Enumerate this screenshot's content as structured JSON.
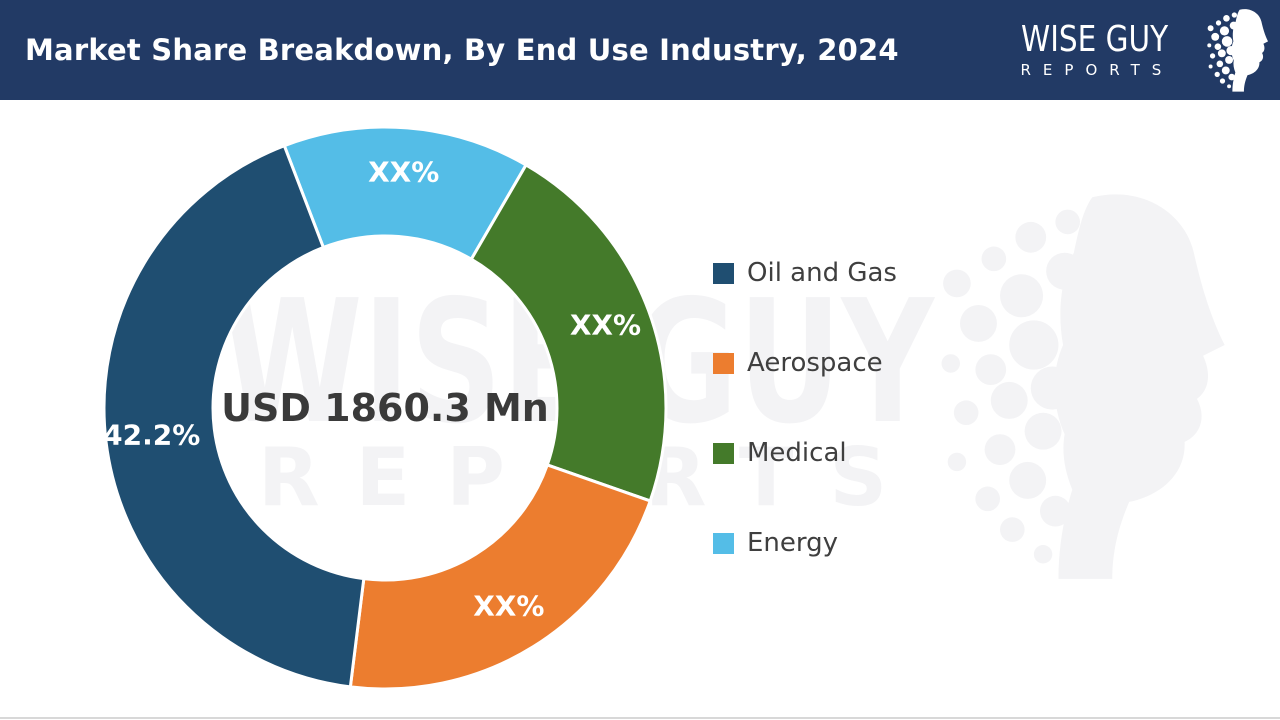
{
  "header": {
    "title": "Market Share Breakdown, By End Use Industry, 2024",
    "logo_line1": "WISE GUY",
    "logo_line2": "REPORTS"
  },
  "watermark": {
    "line1": "WISE GUY",
    "line2": "REPORTS"
  },
  "chart_data": {
    "type": "donut",
    "title": "Market Share Breakdown, By End Use Industry, 2024",
    "center_label": "USD 1860.3 Mn",
    "start_angle_deg": -21,
    "direction": "clockwise",
    "legend_position": "right",
    "segments": [
      {
        "name": "Energy",
        "display_label": "XX%",
        "percent": 14.2,
        "color": "#54bde7"
      },
      {
        "name": "Medical",
        "display_label": "XX%",
        "percent": 22.0,
        "color": "#447a2a"
      },
      {
        "name": "Aerospace",
        "display_label": "XX%",
        "percent": 21.6,
        "color": "#ec7d2f"
      },
      {
        "name": "Oil and Gas",
        "display_label": "42.2%",
        "percent": 42.2,
        "color": "#1f4e71"
      }
    ],
    "legend": [
      {
        "label": "Oil and Gas",
        "color": "#1f4e71"
      },
      {
        "label": "Aerospace",
        "color": "#ec7d2f"
      },
      {
        "label": "Medical",
        "color": "#447a2a"
      },
      {
        "label": "Energy",
        "color": "#54bde7"
      }
    ]
  },
  "colors": {
    "header_bg": "#223a65",
    "watermark": "#f3f3f5",
    "center_text": "#3a3a3a",
    "bottom_line": "#d8d8d8"
  }
}
